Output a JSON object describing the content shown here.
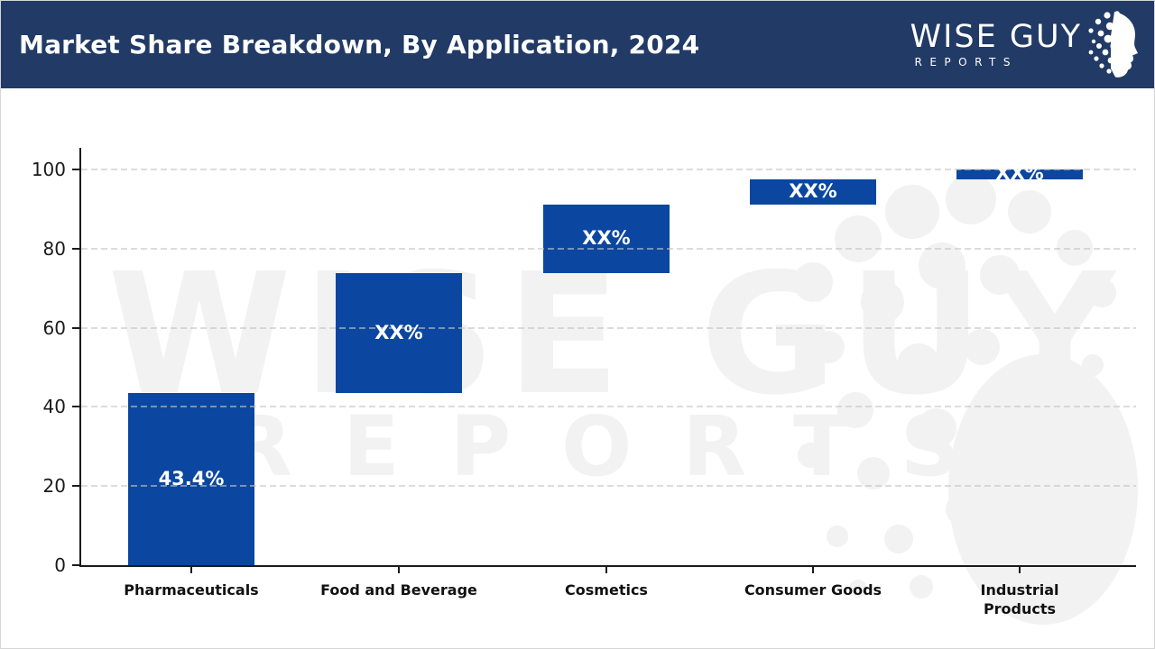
{
  "header": {
    "title": "Market Share Breakdown, By Application, 2024",
    "logo": {
      "name": "WISE GUY",
      "tagline": "REPORTS"
    }
  },
  "watermark": {
    "line1": "WISE GUY",
    "line2": "REPORTS"
  },
  "chart_data": {
    "type": "bar",
    "variant": "waterfall",
    "title": "Market Share Breakdown, By Application, 2024",
    "unit": "%",
    "categories": [
      "Pharmaceuticals",
      "Food and Beverage",
      "Cosmetics",
      "Consumer Goods",
      "Industrial\nProducts"
    ],
    "segments": [
      {
        "category": "Pharmaceuticals",
        "start": 0,
        "end": 43.4,
        "label": "43.4%"
      },
      {
        "category": "Food and Beverage",
        "start": 43.4,
        "end": 73.8,
        "label": "XX%"
      },
      {
        "category": "Cosmetics",
        "start": 73.8,
        "end": 91.2,
        "label": "XX%"
      },
      {
        "category": "Consumer Goods",
        "start": 91.2,
        "end": 97.5,
        "label": "XX%"
      },
      {
        "category": "Industrial Products",
        "start": 97.5,
        "end": 100,
        "label": "XX%"
      }
    ],
    "yticks": [
      0,
      20,
      40,
      60,
      80,
      100
    ],
    "ylim": [
      0,
      100
    ],
    "grid": "dashed-horizontal-over-bars",
    "legend": "none",
    "bar_color": "#0b47a1",
    "label_color": "#ffffff"
  },
  "colors": {
    "header_bg": "#213a66",
    "axis": "#1a1a1a",
    "grid": "#c4c4c4",
    "watermark": "#f2f2f2"
  }
}
